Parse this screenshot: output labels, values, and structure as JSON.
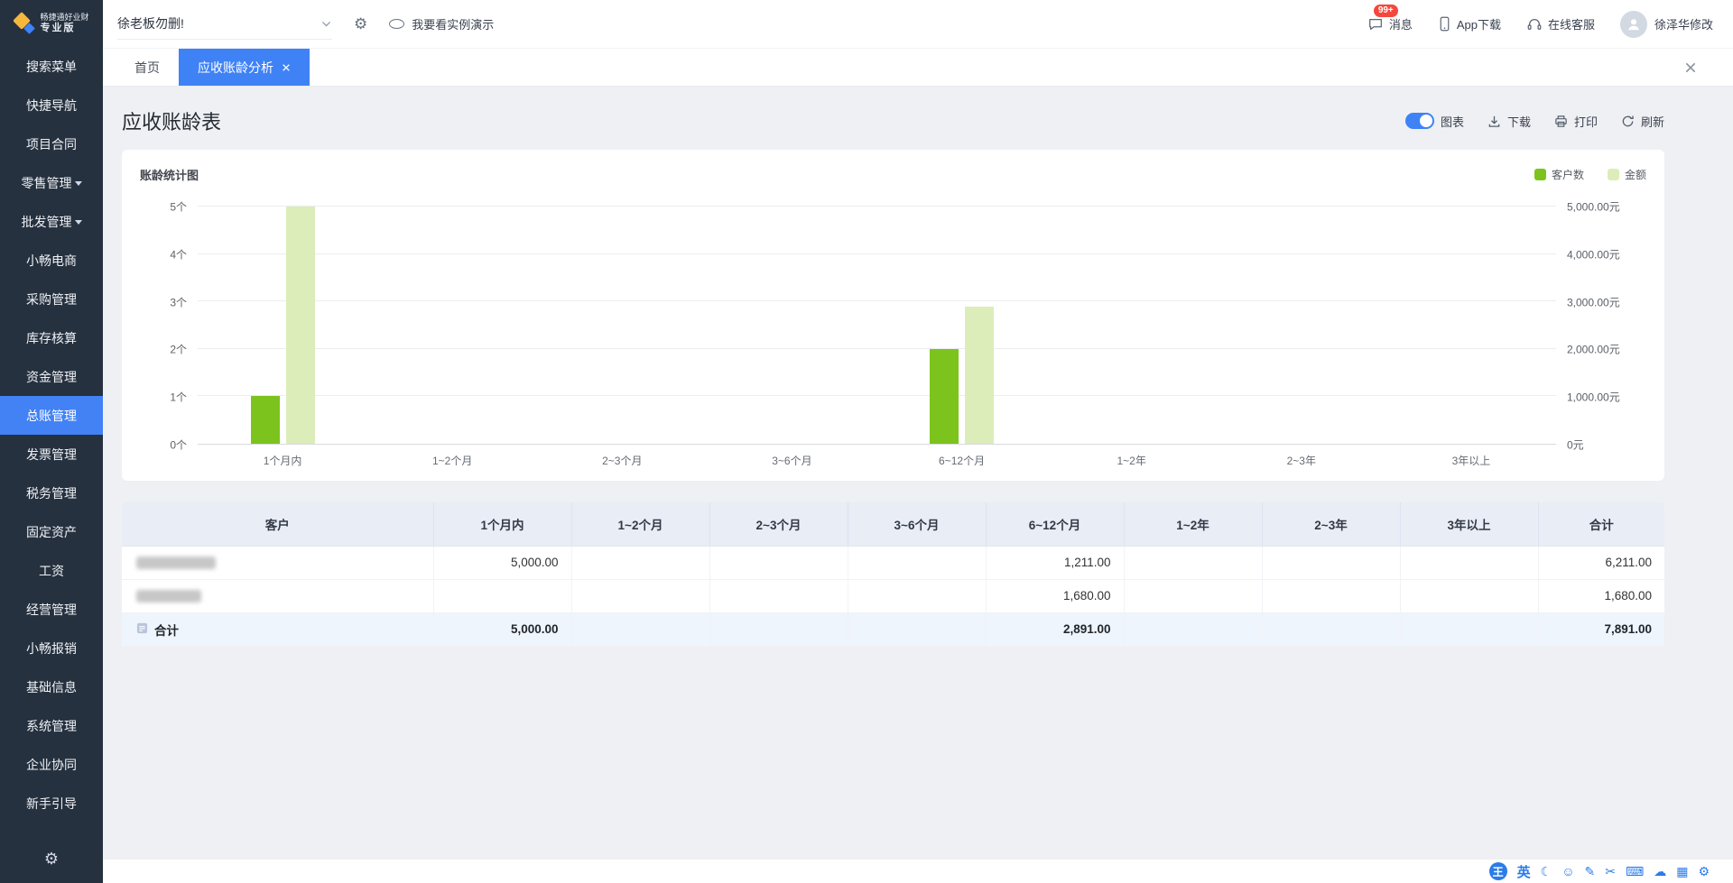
{
  "app": {
    "brand": "畅捷通好业财",
    "edition": "专业版"
  },
  "sidebar": {
    "items": [
      {
        "label": "搜索菜单"
      },
      {
        "label": "快捷导航"
      },
      {
        "label": "项目合同"
      },
      {
        "label": "零售管理",
        "has_arrow": true
      },
      {
        "label": "批发管理",
        "has_arrow": true
      },
      {
        "label": "小畅电商"
      },
      {
        "label": "采购管理"
      },
      {
        "label": "库存核算"
      },
      {
        "label": "资金管理"
      },
      {
        "label": "总账管理",
        "active": true
      },
      {
        "label": "发票管理"
      },
      {
        "label": "税务管理"
      },
      {
        "label": "固定资产"
      },
      {
        "label": "工资"
      },
      {
        "label": "经营管理"
      },
      {
        "label": "小畅报销"
      },
      {
        "label": "基础信息"
      },
      {
        "label": "系统管理"
      },
      {
        "label": "企业协同"
      },
      {
        "label": "新手引导"
      }
    ]
  },
  "topbar": {
    "company": "徐老板勿删!",
    "demo": "我要看实例演示",
    "messages": "消息",
    "messages_badge": "99+",
    "app_download": "App下载",
    "support": "在线客服",
    "user": "徐泽华修改"
  },
  "tabs": [
    {
      "label": "首页",
      "active": false,
      "closable": false
    },
    {
      "label": "应收账龄分析",
      "active": true,
      "closable": true
    }
  ],
  "page": {
    "title": "应收账龄表",
    "toggle_label": "图表",
    "toggle_on": true,
    "download_label": "下载",
    "print_label": "打印",
    "refresh_label": "刷新"
  },
  "chart_data": {
    "type": "bar",
    "title": "账龄统计图",
    "categories": [
      "1个月内",
      "1~2个月",
      "2~3个月",
      "3~6个月",
      "6~12个月",
      "1~2年",
      "2~3年",
      "3年以上"
    ],
    "series": [
      {
        "name": "客户数",
        "axis": "left",
        "color": "#7cc41d",
        "values": [
          1,
          0,
          0,
          0,
          2,
          0,
          0,
          0
        ]
      },
      {
        "name": "金额",
        "axis": "right",
        "color": "#dcedba",
        "values": [
          5000,
          0,
          0,
          0,
          2891,
          0,
          0,
          0
        ]
      }
    ],
    "left_axis": {
      "unit": "个",
      "max": 5,
      "ticks": [
        "0个",
        "1个",
        "2个",
        "3个",
        "4个",
        "5个"
      ]
    },
    "right_axis": {
      "unit": "元",
      "max": 5000,
      "ticks": [
        "0元",
        "1,000.00元",
        "2,000.00元",
        "3,000.00元",
        "4,000.00元",
        "5,000.00元"
      ]
    },
    "grid": true,
    "legend_position": "top-right"
  },
  "table": {
    "columns": [
      "客户",
      "1个月内",
      "1~2个月",
      "2~3个月",
      "3~6个月",
      "6~12个月",
      "1~2年",
      "2~3年",
      "3年以上",
      "合计"
    ],
    "rows": [
      {
        "customer_redacted": true,
        "values": [
          "5,000.00",
          "",
          "",
          "",
          "1,211.00",
          "",
          "",
          "",
          "6,211.00"
        ]
      },
      {
        "customer_redacted": true,
        "values": [
          "",
          "",
          "",
          "",
          "1,680.00",
          "",
          "",
          "",
          "1,680.00"
        ]
      }
    ],
    "total": {
      "label": "合计",
      "values": [
        "5,000.00",
        "",
        "",
        "",
        "2,891.00",
        "",
        "",
        "",
        "7,891.00"
      ]
    }
  },
  "ime": {
    "logo_text": "王",
    "mode": "英",
    "icons": [
      "moon-icon",
      "emoji-icon",
      "pen-icon",
      "scissors-icon",
      "keyboard-icon",
      "cloud-icon",
      "toolbox-icon",
      "gear-icon"
    ]
  },
  "colors": {
    "accent": "#3f82f6",
    "sidebar_active": "#4282f5",
    "customer_series": "#7cc41d",
    "amount_series": "#dcedba",
    "badge_red": "#f5473d"
  }
}
